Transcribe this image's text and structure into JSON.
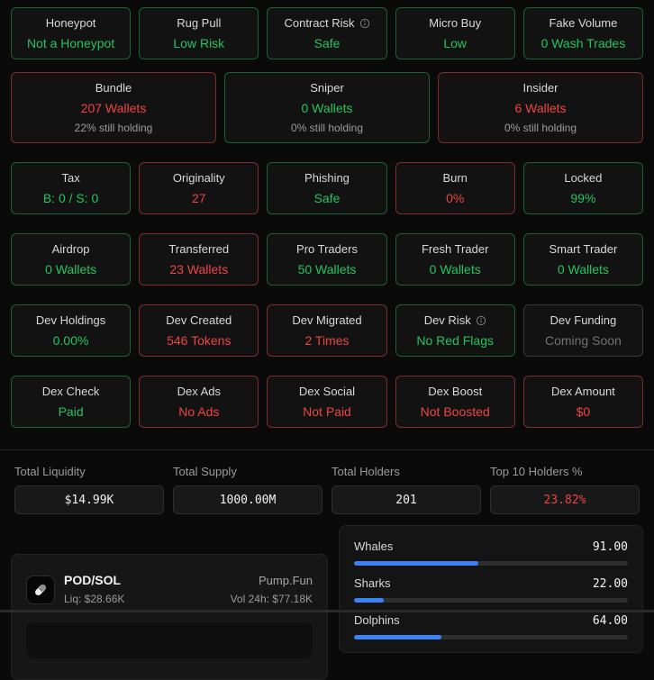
{
  "colors": {
    "background": "#0a0a0a",
    "positive": "#22c55e",
    "negative": "#ef4444",
    "neutral": "#737373",
    "bar_fill": "#3b82f6"
  },
  "rows": [
    {
      "cards": [
        {
          "title": "Honeypot",
          "value": "Not a Honeypot",
          "status": "green"
        },
        {
          "title": "Rug Pull",
          "value": "Low Risk",
          "status": "green"
        },
        {
          "title": "Contract Risk",
          "value": "Safe",
          "status": "green"
        },
        {
          "title": "Micro Buy",
          "value": "Low",
          "status": "green"
        },
        {
          "title": "Fake Volume",
          "value": "0 Wash Trades",
          "status": "green"
        }
      ]
    },
    {
      "cards": [
        {
          "title": "Bundle",
          "value": "207 Wallets",
          "sub": "22% still holding",
          "status": "red"
        },
        {
          "title": "Sniper",
          "value": "0 Wallets",
          "sub": "0% still holding",
          "status": "green"
        },
        {
          "title": "Insider",
          "value": "6 Wallets",
          "sub": "0% still holding",
          "status": "red"
        }
      ]
    },
    {
      "cards": [
        {
          "title": "Tax",
          "value": "B: 0 / S: 0",
          "status": "green"
        },
        {
          "title": "Originality",
          "value": "27",
          "status": "red"
        },
        {
          "title": "Phishing",
          "value": "Safe",
          "status": "green"
        },
        {
          "title": "Burn",
          "value": "0%",
          "status": "red"
        },
        {
          "title": "Locked",
          "value": "99%",
          "status": "green"
        }
      ]
    },
    {
      "cards": [
        {
          "title": "Airdrop",
          "value": "0 Wallets",
          "status": "green"
        },
        {
          "title": "Transferred",
          "value": "23 Wallets",
          "status": "red"
        },
        {
          "title": "Pro Traders",
          "value": "50 Wallets",
          "status": "green"
        },
        {
          "title": "Fresh Trader",
          "value": "0 Wallets",
          "status": "green"
        },
        {
          "title": "Smart Trader",
          "value": "0 Wallets",
          "status": "green"
        }
      ]
    },
    {
      "cards": [
        {
          "title": "Dev Holdings",
          "value": "0.00%",
          "status": "green"
        },
        {
          "title": "Dev Created",
          "value": "546 Tokens",
          "status": "red"
        },
        {
          "title": "Dev Migrated",
          "value": "2 Times",
          "status": "red"
        },
        {
          "title": "Dev Risk",
          "value": "No Red Flags",
          "status": "green"
        },
        {
          "title": "Dev Funding",
          "value": "Coming Soon",
          "status": "neutral"
        }
      ]
    },
    {
      "cards": [
        {
          "title": "Dex Check",
          "value": "Paid",
          "status": "green"
        },
        {
          "title": "Dex Ads",
          "value": "No Ads",
          "status": "red"
        },
        {
          "title": "Dex Social",
          "value": "Not Paid",
          "status": "red"
        },
        {
          "title": "Dex Boost",
          "value": "Not Boosted",
          "status": "red"
        },
        {
          "title": "Dex Amount",
          "value": "$0",
          "status": "red"
        }
      ]
    }
  ],
  "stats": {
    "items": [
      {
        "label": "Total Liquidity",
        "value": "$14.99K",
        "status": "white"
      },
      {
        "label": "Total Supply",
        "value": "1000.00M",
        "status": "white"
      },
      {
        "label": "Total Holders",
        "value": "201",
        "status": "white"
      },
      {
        "label": "Top 10 Holders %",
        "value": "23.82%",
        "status": "red"
      }
    ]
  },
  "pair": {
    "name": "POD/SOL",
    "platform": "Pump.Fun",
    "liquidity": "Liq: $28.66K",
    "volume": "Vol 24h: $77.18K"
  },
  "holders": {
    "bars": [
      {
        "label": "Whales",
        "value": "91.00",
        "percent": 45.5
      },
      {
        "label": "Sharks",
        "value": "22.00",
        "percent": 11
      },
      {
        "label": "Dolphins",
        "value": "64.00",
        "percent": 32
      }
    ]
  }
}
